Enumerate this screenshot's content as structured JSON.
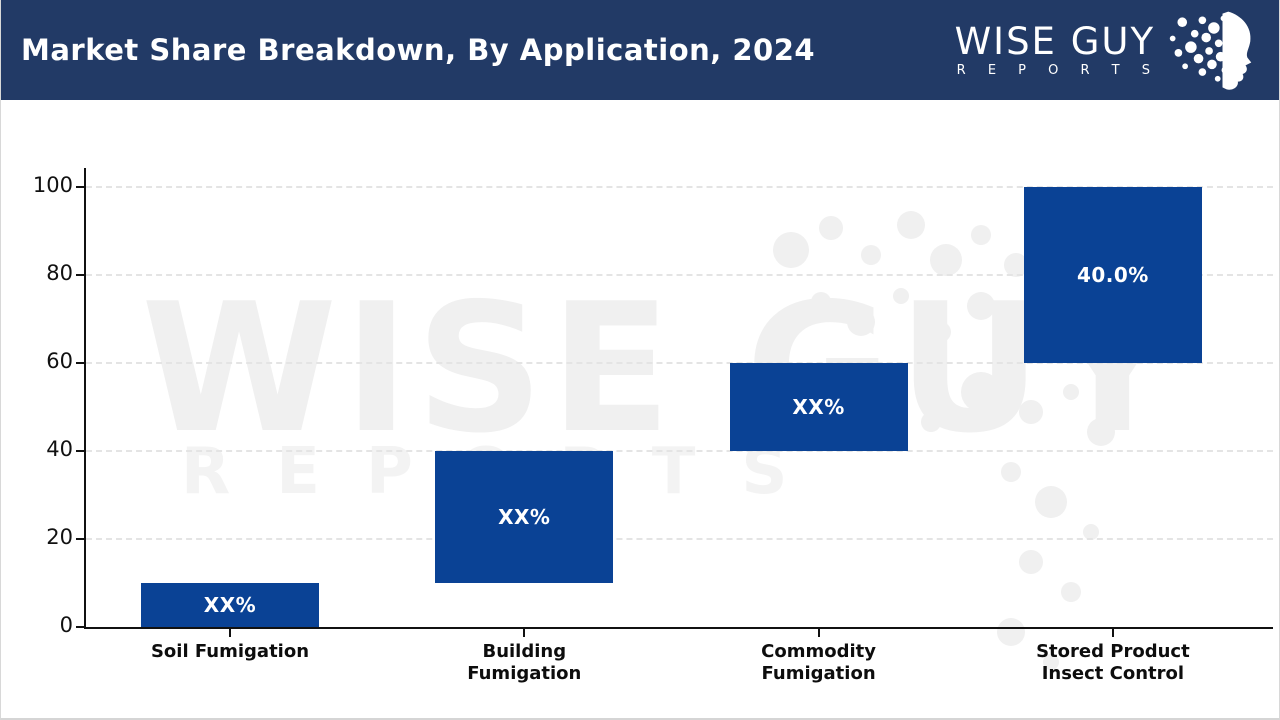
{
  "header": {
    "title": "Market Share Breakdown, By Application, 2024",
    "logo": {
      "line1": "WISE GUY",
      "line2": "R E P O R T S"
    }
  },
  "watermark": {
    "line1": "WISE GUY",
    "line2": "REPORTS"
  },
  "colors": {
    "header_bg": "#223a66",
    "bar": "#0a4295",
    "bar_label": "#ffffff",
    "grid": "#e4e4e4",
    "axis": "#111111",
    "watermark": "#f0f0f0"
  },
  "chart_data": {
    "type": "bar",
    "subtype": "waterfall",
    "title": "Market Share Breakdown, By Application, 2024",
    "xlabel": "",
    "ylabel": "",
    "ylim": [
      0,
      100
    ],
    "yticks": [
      0,
      20,
      40,
      60,
      80,
      100
    ],
    "grid": true,
    "grid_style": "dashed",
    "legend": "none",
    "bar_color": "#0a4295",
    "categories": [
      "Soil Fumigation",
      "Building\nFumigation",
      "Commodity\nFumigation",
      "Stored Product\nInsect Control"
    ],
    "segments": [
      {
        "category": "Soil Fumigation",
        "start": 0,
        "end": 10,
        "value": 10,
        "label": "XX%"
      },
      {
        "category": "Building Fumigation",
        "start": 10,
        "end": 40,
        "value": 30,
        "label": "XX%"
      },
      {
        "category": "Commodity Fumigation",
        "start": 40,
        "end": 60,
        "value": 20,
        "label": "XX%"
      },
      {
        "category": "Stored Product Insect Control",
        "start": 60,
        "end": 100,
        "value": 40,
        "label": "40.0%"
      }
    ]
  }
}
